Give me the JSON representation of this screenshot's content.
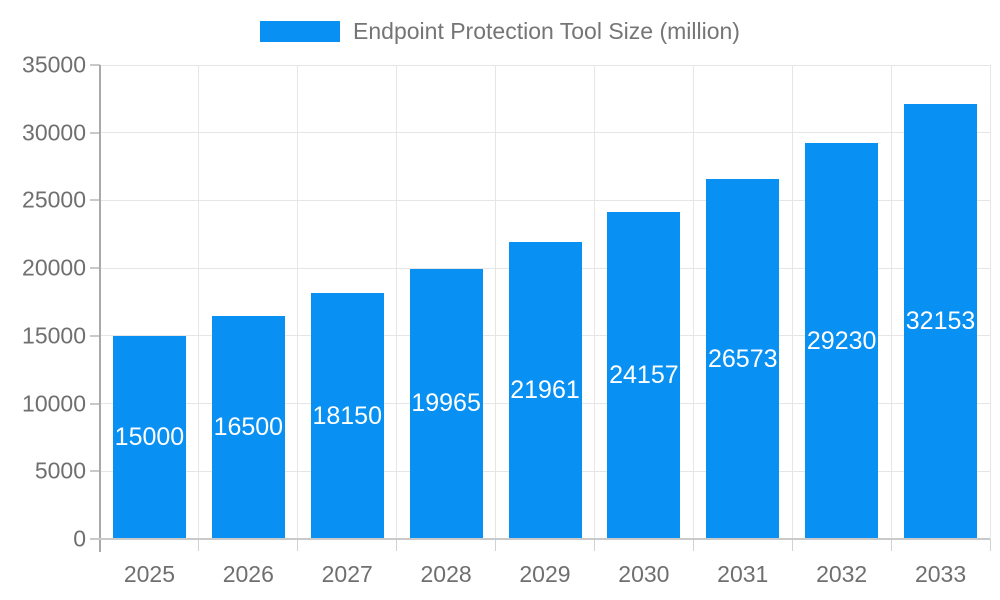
{
  "legend": {
    "position": "top",
    "items": [
      {
        "label": "Endpoint Protection Tool Size (million)",
        "color": "#0890f3"
      }
    ]
  },
  "chart_data": {
    "type": "bar",
    "title": "Endpoint Protection Tool Size (million)",
    "categories": [
      "2025",
      "2026",
      "2027",
      "2028",
      "2029",
      "2030",
      "2031",
      "2032",
      "2033"
    ],
    "values": [
      15000,
      16500,
      18150,
      19965,
      21961,
      24157,
      26573,
      29230,
      32153
    ],
    "series_name": "Endpoint Protection Tool Size (million)",
    "xlabel": "",
    "ylabel": "",
    "ylim": [
      0,
      35000
    ],
    "ytick_step": 5000,
    "yticks": [
      0,
      5000,
      10000,
      15000,
      20000,
      25000,
      30000,
      35000
    ],
    "grid": true,
    "legend_position": "top",
    "value_labels": "inside-center",
    "colors": {
      "bar": "#0890f3",
      "value_label": "#ffffff",
      "grid_line": "#e6e6e6",
      "y_axis_line": "#a9a9a9",
      "x_axis_line": "#c9c9c9",
      "tick_mark": "#d2d2d2",
      "axis_text": "#6f6f6f",
      "legend_text": "#757575",
      "background": "#ffffff"
    }
  }
}
